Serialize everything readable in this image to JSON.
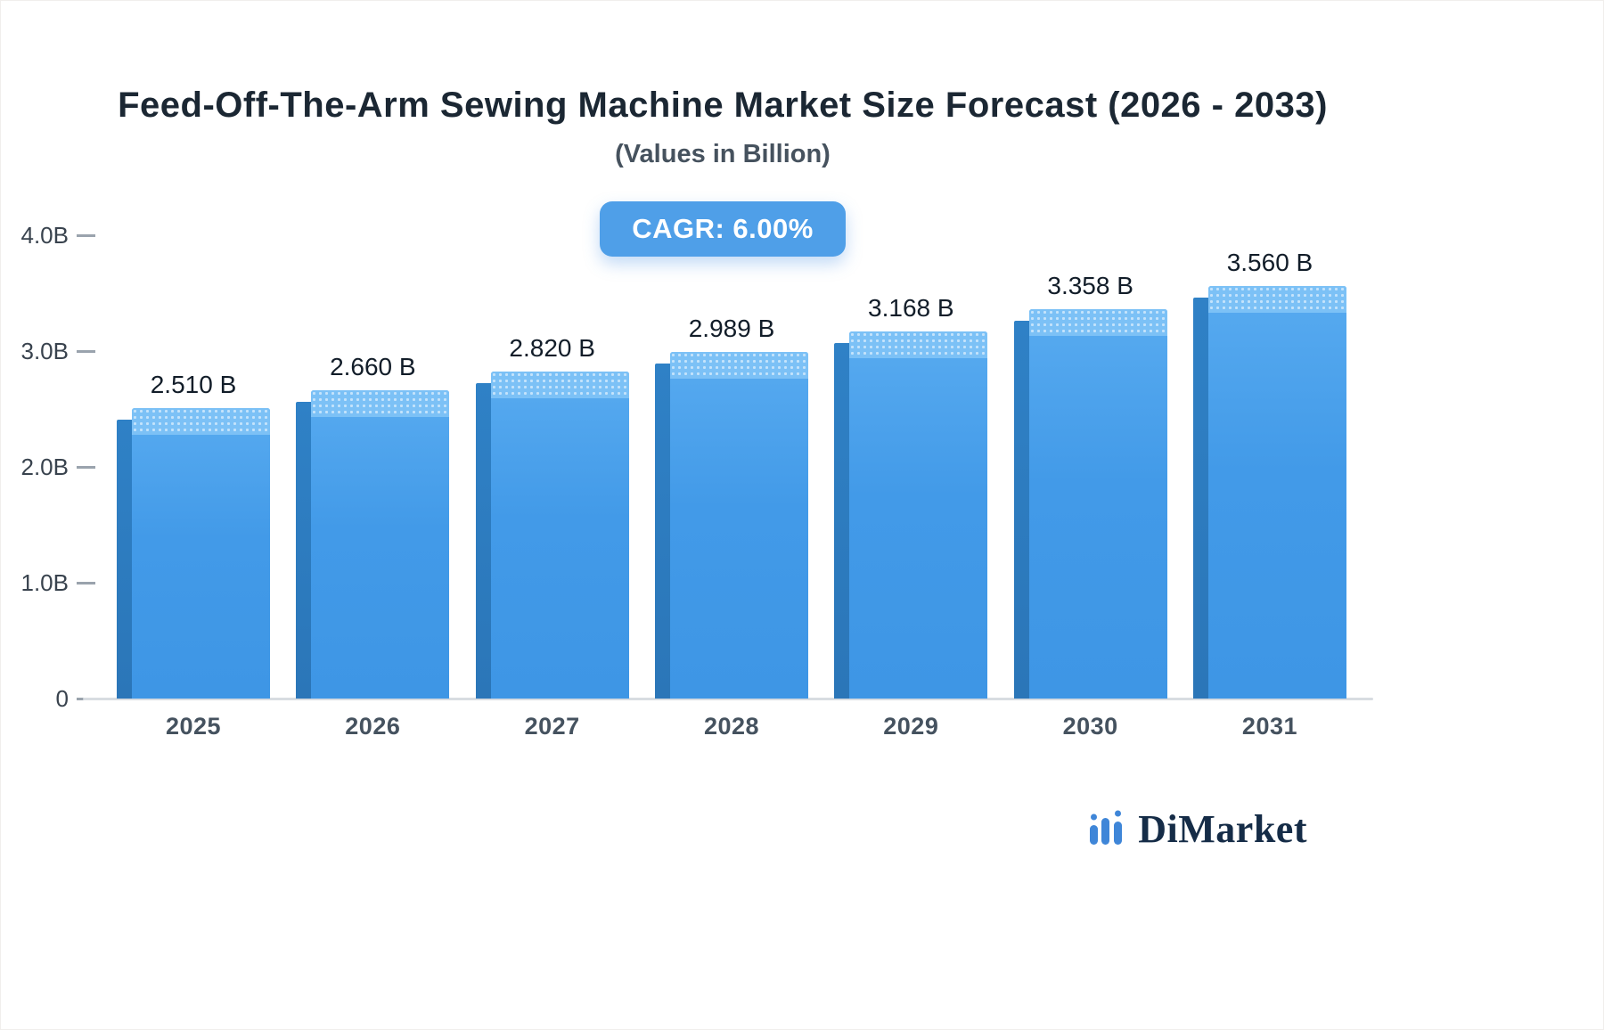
{
  "header": {
    "title": "Feed-Off-The-Arm Sewing Machine Market Size Forecast (2026 - 2033)",
    "subtitle": "(Values in Billion)",
    "badge": "CAGR: 6.00%"
  },
  "logo": {
    "text": "DiMarket",
    "icon": "bar-chart-icon",
    "accent_color": "#3f86d8",
    "text_color": "#152c47"
  },
  "chart_data": {
    "type": "bar",
    "title": "Feed-Off-The-Arm Sewing Machine Market Size Forecast (2026 - 2033)",
    "subtitle": "(Values in Billion)",
    "categories": [
      "2025",
      "2026",
      "2027",
      "2028",
      "2029",
      "2030",
      "2031"
    ],
    "values": [
      2.51,
      2.66,
      2.82,
      2.989,
      3.168,
      3.358,
      3.56
    ],
    "value_labels": [
      "2.510 B",
      "2.660 B",
      "2.820 B",
      "2.989 B",
      "3.168 B",
      "3.358 B",
      "3.560 B"
    ],
    "xlabel": "",
    "ylabel": "",
    "ylim": [
      0,
      4.0
    ],
    "yticks": [
      {
        "label": "4.0B",
        "value": 4.0
      },
      {
        "label": "3.0B",
        "value": 3.0
      },
      {
        "label": "2.0B",
        "value": 2.0
      },
      {
        "label": "1.0B",
        "value": 1.0
      },
      {
        "label": "0",
        "value": 0.0
      }
    ],
    "grid": "off",
    "legend_position": "none",
    "annotations": [
      "CAGR: 6.00%"
    ],
    "bar_color_top": "#58abf0",
    "bar_color_bottom": "#3e96e5",
    "bar_side_color": "#2f81c6",
    "bar_cap_color": "#7cc1f6",
    "badge_color": "#4f9fe8",
    "baseline_color": "#d8dce1"
  }
}
